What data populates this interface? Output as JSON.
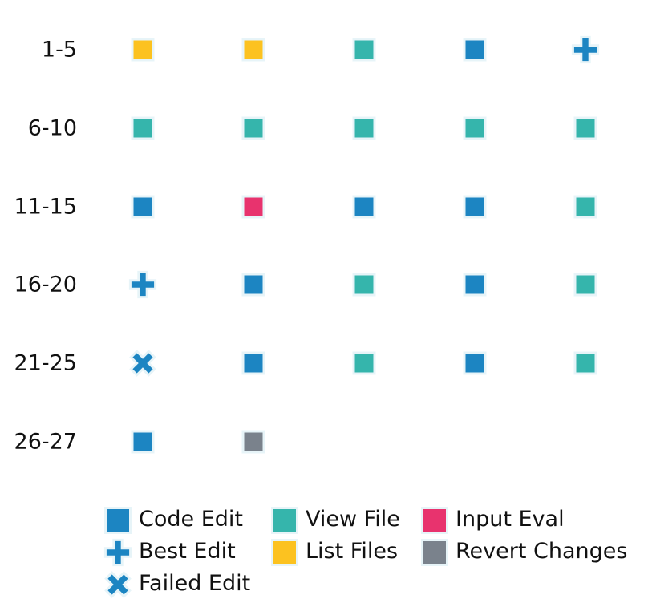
{
  "chart_data": {
    "type": "scatter",
    "title": "",
    "xlabel": "",
    "ylabel": "",
    "description": "Grid of action markers per step group; five steps per row, legend at bottom",
    "rows": [
      "1-5",
      "6-10",
      "11-15",
      "16-20",
      "21-25",
      "26-27"
    ],
    "grid": [
      [
        "List Files",
        "List Files",
        "View File",
        "Code Edit",
        "Best Edit"
      ],
      [
        "View File",
        "View File",
        "View File",
        "View File",
        "View File"
      ],
      [
        "Code Edit",
        "Input Eval",
        "Code Edit",
        "Code Edit",
        "View File"
      ],
      [
        "Best Edit",
        "Code Edit",
        "View File",
        "Code Edit",
        "View File"
      ],
      [
        "Failed Edit",
        "Code Edit",
        "View File",
        "Code Edit",
        "View File"
      ],
      [
        "Code Edit",
        "Revert Changes"
      ]
    ],
    "markers": {
      "Code Edit": {
        "shape": "square",
        "color": "#1c85c2"
      },
      "Best Edit": {
        "shape": "plus",
        "color": "#1c85c2"
      },
      "Failed Edit": {
        "shape": "x",
        "color": "#1c85c2"
      },
      "View File": {
        "shape": "square",
        "color": "#35b5ac"
      },
      "List Files": {
        "shape": "square",
        "color": "#fcc220"
      },
      "Input Eval": {
        "shape": "square",
        "color": "#e8336e"
      },
      "Revert Changes": {
        "shape": "square",
        "color": "#7a828c"
      }
    },
    "legend_columns": [
      [
        "Code Edit",
        "Best Edit",
        "Failed Edit"
      ],
      [
        "View File",
        "List Files"
      ],
      [
        "Input Eval",
        "Revert Changes"
      ]
    ],
    "legend_position": "bottom",
    "marker_edge_color": "#e7f4f8",
    "background_color": "#ffffff",
    "text_color": "#111111",
    "grid_lines": false
  }
}
